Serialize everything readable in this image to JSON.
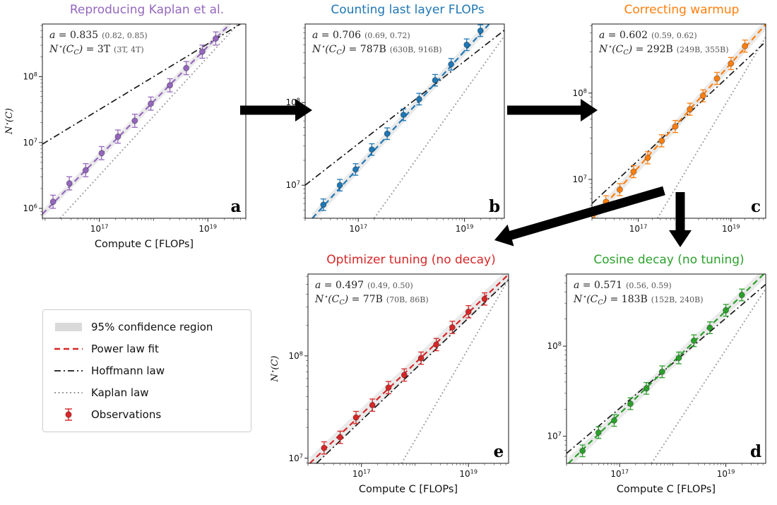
{
  "figure": {
    "background": "#ffffff",
    "legend": {
      "items": [
        {
          "label": "95% confidence region",
          "swatch": "band",
          "color": "#d9d9d9"
        },
        {
          "label": "Power law fit",
          "swatch": "dashed",
          "color": "#d62728"
        },
        {
          "label": "Hoffmann law",
          "swatch": "dashdot",
          "color": "#1a1a1a"
        },
        {
          "label": "Kaplan law",
          "swatch": "dotted",
          "color": "#999999"
        },
        {
          "label": "Observations",
          "swatch": "point",
          "color": "#d62728"
        }
      ]
    }
  },
  "chart_data": [
    {
      "id": "a",
      "type": "scatter",
      "panel_label": "a",
      "title": "Reproducing Kaplan et al.",
      "title_color": "#9467bd",
      "xlabel": "Compute C [FLOPs]",
      "ylabel": "N^⋆(C)",
      "xscale": "log",
      "yscale": "log",
      "xlim_exp": [
        15.95,
        19.7
      ],
      "ylim_exp": [
        5.85,
        8.8
      ],
      "x_ticks_exp": [
        17,
        19
      ],
      "y_ticks_exp": [
        6,
        7,
        8
      ],
      "annotation": [
        {
          "expr": "a",
          "value": "0.835",
          "ci": "(0.82, 0.85)"
        },
        {
          "expr": "N^⋆(C_C)",
          "value": "3T",
          "ci": "(3T, 4T)"
        }
      ],
      "observations": {
        "color": "#9467bd",
        "yerr_dex": 0.1,
        "C_flops": [
          1.4e+16,
          2.8e+16,
          5.6e+16,
          1.1e+17,
          2.2e+17,
          4.5e+17,
          8.9e+17,
          2e+18,
          4e+18,
          7.9e+18,
          1.4e+19
        ],
        "N_params": [
          1260000.0,
          2400000.0,
          3800000.0,
          6900000.0,
          12300000.0,
          21400000.0,
          39000000.0,
          74000000.0,
          135000000.0,
          240000000.0,
          380000000.0
        ]
      },
      "lines": {
        "fit": {
          "slope": 0.835,
          "log_anchor": [
            17,
            6.79
          ],
          "style": "dashed",
          "color": "#9467bd"
        },
        "hoffmann": {
          "slope": 0.5,
          "log_anchor": [
            17,
            7.5
          ],
          "style": "dashdot",
          "color": "#1a1a1a"
        },
        "kaplan": {
          "slope": 0.9,
          "log_anchor": [
            17,
            6.5
          ],
          "style": "dotted",
          "color": "#999999"
        }
      },
      "band_halfwidth_dex": 0.06,
      "band_color": "#d9d9d9"
    },
    {
      "id": "b",
      "type": "scatter",
      "panel_label": "b",
      "title": "Counting last layer FLOPs",
      "title_color": "#1f77b4",
      "xlabel": "",
      "ylabel": "",
      "xscale": "log",
      "yscale": "log",
      "xlim_exp": [
        16.0,
        19.75
      ],
      "ylim_exp": [
        6.6,
        8.95
      ],
      "x_ticks_exp": [
        17,
        19
      ],
      "y_ticks_exp": [
        7,
        8
      ],
      "annotation": [
        {
          "expr": "a",
          "value": "0.706",
          "ci": "(0.69, 0.72)"
        },
        {
          "expr": "N^⋆(C_C)",
          "value": "787B",
          "ci": "(630B, 916B)"
        }
      ],
      "observations": {
        "color": "#1f77b4",
        "yerr_dex": 0.07,
        "C_flops": [
          2.2e+16,
          4.5e+16,
          8.9e+16,
          1.8e+17,
          3.5e+17,
          7.1e+17,
          1.4e+18,
          2.8e+18,
          5.6e+18,
          1.1e+19,
          2e+19
        ],
        "N_params": [
          5800000.0,
          10000000.0,
          15500000.0,
          27000000.0,
          42000000.0,
          71000000.0,
          110000000.0,
          186000000.0,
          290000000.0,
          500000000.0,
          740000000.0
        ]
      },
      "lines": {
        "fit": {
          "slope": 0.706,
          "log_anchor": [
            17,
            7.21
          ],
          "style": "dashed",
          "color": "#1f77b4"
        },
        "hoffmann": {
          "slope": 0.5,
          "log_anchor": [
            17,
            7.5
          ],
          "style": "dashdot",
          "color": "#1a1a1a"
        },
        "kaplan": {
          "slope": 0.9,
          "log_anchor": [
            17.3,
            6.6
          ],
          "style": "dotted",
          "color": "#999999"
        }
      },
      "band_halfwidth_dex": 0.06,
      "band_color": "#d9d9d9"
    },
    {
      "id": "c",
      "type": "scatter",
      "panel_label": "c",
      "title": "Correcting warmup",
      "title_color": "#ff7f0e",
      "xlabel": "",
      "ylabel": "",
      "xscale": "log",
      "yscale": "log",
      "xlim_exp": [
        16.0,
        19.75
      ],
      "ylim_exp": [
        6.55,
        8.8
      ],
      "x_ticks_exp": [
        17,
        19
      ],
      "y_ticks_exp": [
        7,
        8
      ],
      "annotation": [
        {
          "expr": "a",
          "value": "0.602",
          "ci": "(0.59, 0.62)"
        },
        {
          "expr": "N^⋆(C_C)",
          "value": "292B",
          "ci": "(249B, 355B)"
        }
      ],
      "observations": {
        "color": "#ff7f0e",
        "yerr_dex": 0.07,
        "C_flops": [
          2e+16,
          4e+16,
          7.9e+16,
          1.6e+17,
          3.2e+17,
          6.3e+17,
          1.3e+18,
          2.5e+18,
          5e+18,
          1e+19,
          2e+19
        ],
        "N_params": [
          5500000.0,
          7600000.0,
          12300000.0,
          17800000.0,
          28000000.0,
          41000000.0,
          65000000.0,
          93000000.0,
          148000000.0,
          220000000.0,
          350000000.0
        ]
      },
      "lines": {
        "fit": {
          "slope": 0.602,
          "log_anchor": [
            17,
            7.14
          ],
          "style": "dashed",
          "color": "#ff7f0e"
        },
        "hoffmann": {
          "slope": 0.5,
          "log_anchor": [
            17.8,
            7.62
          ],
          "style": "dashdot",
          "color": "#1a1a1a"
        },
        "kaplan": {
          "slope": 0.9,
          "log_anchor": [
            17.45,
            6.58
          ],
          "style": "dotted",
          "color": "#999999"
        }
      },
      "band_halfwidth_dex": 0.06,
      "band_color": "#d9d9d9"
    },
    {
      "id": "e",
      "type": "scatter",
      "panel_label": "e",
      "title": "Optimizer tuning (no decay)",
      "title_color": "#d62728",
      "xlabel": "Compute C [FLOPs]",
      "ylabel": "N^⋆(C)",
      "xscale": "log",
      "yscale": "log",
      "xlim_exp": [
        16.0,
        19.75
      ],
      "ylim_exp": [
        6.95,
        8.8
      ],
      "x_ticks_exp": [
        17,
        19
      ],
      "y_ticks_exp": [
        7,
        8
      ],
      "annotation": [
        {
          "expr": "a",
          "value": "0.497",
          "ci": "(0.49, 0.50)"
        },
        {
          "expr": "N^⋆(C_C)",
          "value": "77B",
          "ci": "(70B, 86B)"
        }
      ],
      "observations": {
        "color": "#d62728",
        "yerr_dex": 0.06,
        "C_flops": [
          2e+16,
          4e+16,
          7.9e+16,
          1.6e+17,
          3.2e+17,
          6.3e+17,
          1.3e+18,
          2.5e+18,
          5e+18,
          1e+19,
          2e+19
        ],
        "N_params": [
          12600000.0,
          16000000.0,
          25000000.0,
          33000000.0,
          49000000.0,
          65000000.0,
          95000000.0,
          129000000.0,
          190000000.0,
          270000000.0,
          360000000.0
        ]
      },
      "lines": {
        "fit": {
          "slope": 0.497,
          "log_anchor": [
            17,
            7.43
          ],
          "style": "dashed",
          "color": "#d62728"
        },
        "hoffmann": {
          "slope": 0.5,
          "log_anchor": [
            17,
            7.37
          ],
          "style": "dashdot",
          "color": "#1a1a1a"
        },
        "kaplan": {
          "slope": 0.9,
          "log_anchor": [
            17.75,
            6.95
          ],
          "style": "dotted",
          "color": "#999999"
        }
      },
      "band_halfwidth_dex": 0.06,
      "band_color": "#d9d9d9"
    },
    {
      "id": "d",
      "type": "scatter",
      "panel_label": "d",
      "title": "Cosine decay (no tuning)",
      "title_color": "#2ca02c",
      "xlabel": "Compute C [FLOPs]",
      "ylabel": "",
      "xscale": "log",
      "yscale": "log",
      "xlim_exp": [
        16.0,
        19.75
      ],
      "ylim_exp": [
        6.7,
        8.8
      ],
      "x_ticks_exp": [
        17,
        19
      ],
      "y_ticks_exp": [
        7,
        8
      ],
      "annotation": [
        {
          "expr": "a",
          "value": "0.571",
          "ci": "(0.56, 0.59)"
        },
        {
          "expr": "N^⋆(C_C)",
          "value": "183B",
          "ci": "(152B, 240B)"
        }
      ],
      "observations": {
        "color": "#2ca02c",
        "yerr_dex": 0.065,
        "C_flops": [
          2e+16,
          4e+16,
          7.9e+16,
          1.6e+17,
          3.2e+17,
          6.3e+17,
          1.3e+18,
          2.5e+18,
          5e+18,
          1e+19,
          2e+19
        ],
        "N_params": [
          6900000.0,
          11000000.0,
          15000000.0,
          23000000.0,
          34000000.0,
          52000000.0,
          74000000.0,
          115000000.0,
          160000000.0,
          250000000.0,
          370000000.0
        ]
      },
      "lines": {
        "fit": {
          "slope": 0.571,
          "log_anchor": [
            17,
            7.25
          ],
          "style": "dashed",
          "color": "#2ca02c"
        },
        "hoffmann": {
          "slope": 0.5,
          "log_anchor": [
            17.8,
            7.71
          ],
          "style": "dashdot",
          "color": "#1a1a1a"
        },
        "kaplan": {
          "slope": 0.9,
          "log_anchor": [
            17.6,
            6.7
          ],
          "style": "dotted",
          "color": "#999999"
        }
      },
      "band_halfwidth_dex": 0.06,
      "band_color": "#d9d9d9"
    }
  ]
}
